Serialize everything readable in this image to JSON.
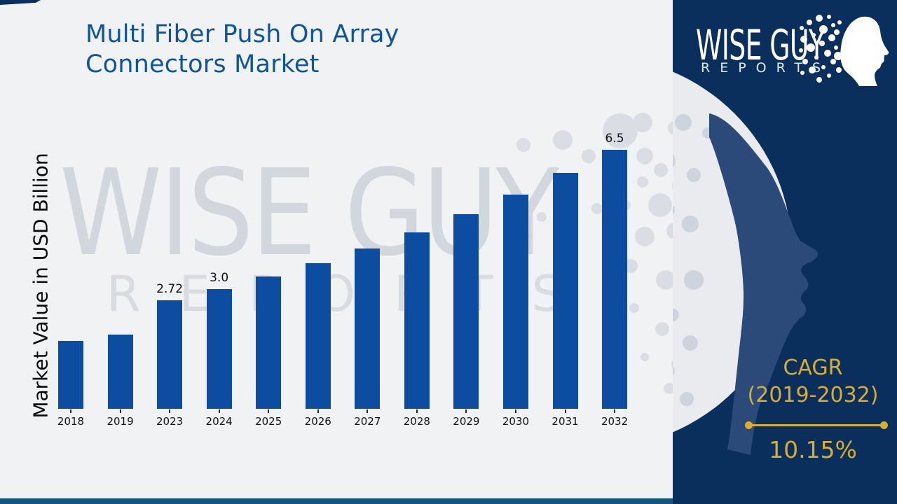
{
  "page": {
    "background_color": "#f1f2f3",
    "bottom_strip_color": "#17567c"
  },
  "header": {
    "title_line1": "Multi Fiber Push On Array",
    "title_line2": "Connectors Market",
    "title_color": "#0f54a1"
  },
  "watermark": {
    "line1": "WISE GUY",
    "line2": "REPORTS"
  },
  "brand_panel": {
    "background_color": "#0b2f5c",
    "logo_title": "WISE GUY",
    "logo_subtitle": "REPORTS",
    "cagr_label": "CAGR",
    "cagr_range": "(2019-2032)",
    "cagr_value": "10.15%",
    "accent_color": "#d9ae2e"
  },
  "chart_data": {
    "type": "bar",
    "title": "",
    "xlabel": "",
    "ylabel": "Market Value in USD Billion",
    "categories": [
      "2018",
      "2019",
      "2023",
      "2024",
      "2025",
      "2026",
      "2027",
      "2028",
      "2029",
      "2030",
      "2031",
      "2032"
    ],
    "values": [
      1.7,
      1.87,
      2.72,
      3.0,
      3.32,
      3.65,
      4.02,
      4.43,
      4.88,
      5.38,
      5.92,
      6.5
    ],
    "point_labels": [
      "",
      "",
      "2.72",
      "3.0",
      "",
      "",
      "",
      "",
      "",
      "",
      "",
      "6.5"
    ],
    "bar_color": "#0c4da2",
    "ylim": [
      0,
      7
    ],
    "grid": false,
    "legend": false
  }
}
